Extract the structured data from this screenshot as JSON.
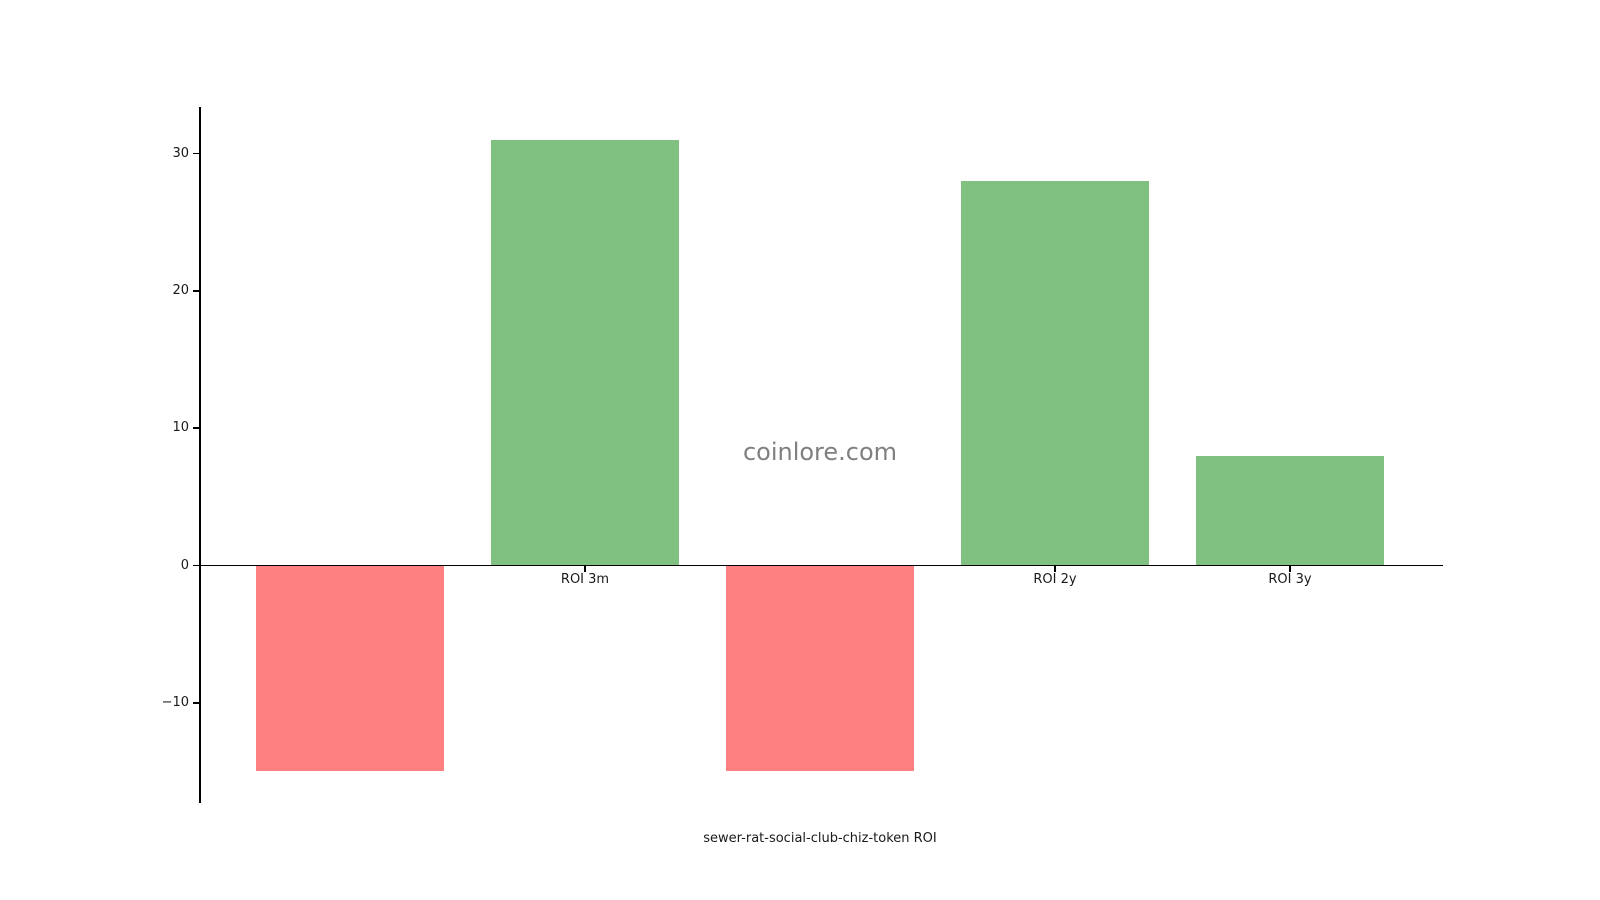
{
  "page": {
    "background_color": "#ffffff"
  },
  "watermark": "coinlore.com",
  "chart_data": {
    "type": "bar",
    "title": "",
    "xlabel": "sewer-rat-social-club-chiz-token ROI",
    "ylabel": "",
    "categories": [
      "",
      "ROI 3m",
      "",
      "ROI 2y",
      "ROI 3y"
    ],
    "values": [
      -15,
      31,
      -15,
      28,
      8
    ],
    "yticks": [
      30,
      20,
      10,
      0,
      -10
    ],
    "ylim": [
      -17.3,
      33.4
    ],
    "grid": false,
    "legend": null,
    "colors": {
      "positive_bar": "#80c080",
      "negative_bar": "#ff8080",
      "axis": "#000000",
      "tick_label": "#1a1a1a",
      "watermark": "#808080"
    }
  }
}
